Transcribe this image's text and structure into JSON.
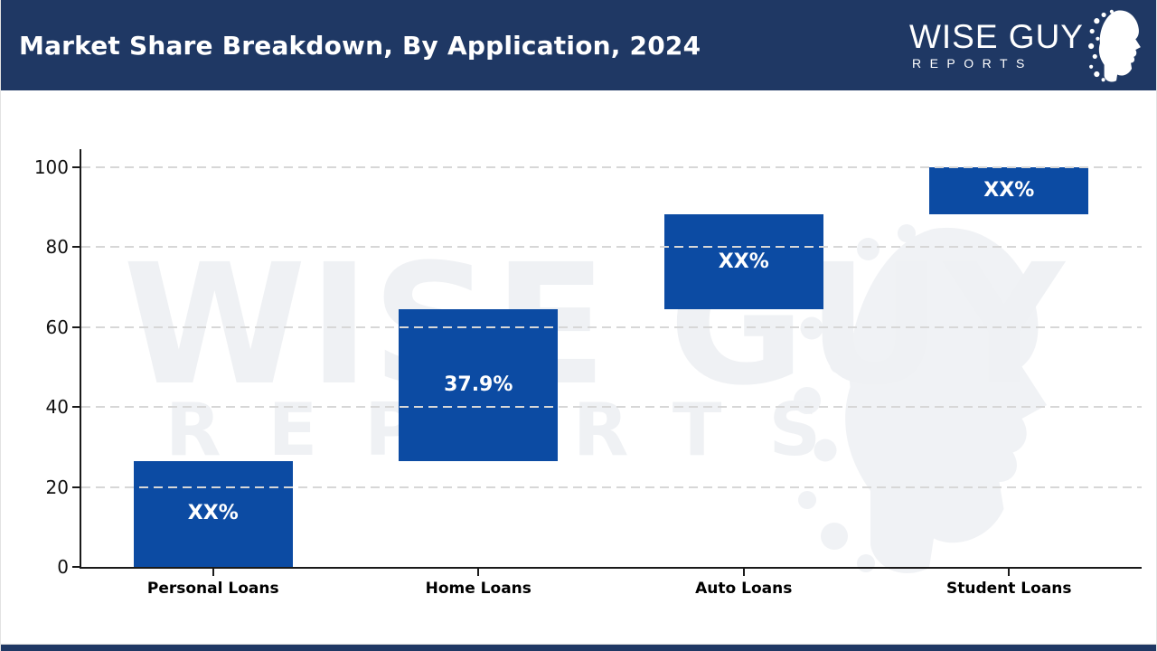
{
  "header": {
    "title": "Market Share Breakdown, By Application, 2024",
    "brand": {
      "line1": "WISE GUY",
      "line2": "REPORTS"
    }
  },
  "watermark": {
    "line1": "WISE GUY",
    "line2": "REPORTS"
  },
  "icons": {
    "brand_head": "dotted-head-profile-icon"
  },
  "colors": {
    "header_bg": "#1f3864",
    "bar_blue": "#0c4ba3",
    "grid_gray": "#d7d7d7",
    "watermark_gray": "#eff1f4",
    "axis_black": "#1a1a1a",
    "bar_label_white": "#ffffff"
  },
  "chart_data": {
    "type": "bar",
    "subtype": "waterfall-stacked-percent",
    "title": "Market Share Breakdown, By Application, 2024",
    "xlabel": "",
    "ylabel": "",
    "categories": [
      "Personal Loans",
      "Home Loans",
      "Auto Loans",
      "Student Loans"
    ],
    "segments": [
      {
        "category": "Personal Loans",
        "start": 0,
        "end": 26.5,
        "value_label": "XX%"
      },
      {
        "category": "Home Loans",
        "start": 26.5,
        "end": 64.4,
        "value_label": "37.9%"
      },
      {
        "category": "Auto Loans",
        "start": 64.4,
        "end": 88.3,
        "value_label": "XX%"
      },
      {
        "category": "Student Loans",
        "start": 88.3,
        "end": 100,
        "value_label": "XX%"
      }
    ],
    "yticks": [
      0,
      20,
      40,
      60,
      80,
      100
    ],
    "ylim": [
      0,
      104.5
    ],
    "grid": "horizontal-dashed, drawn above bars",
    "legend": "none"
  }
}
